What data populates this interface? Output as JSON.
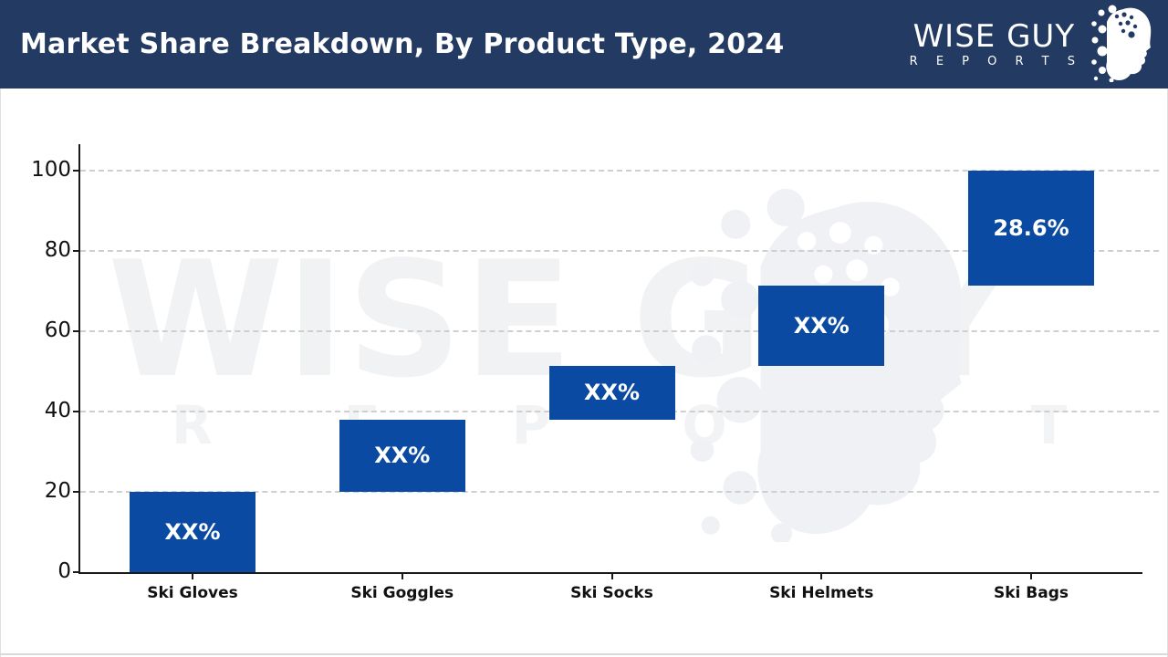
{
  "header": {
    "title": "Market Share Breakdown, By Product Type, 2024",
    "logo": {
      "line1": "WISE GUY",
      "line2": "R E P O R T S"
    }
  },
  "watermark": {
    "line1": "WISE GUY",
    "line2": "R E P O R T S"
  },
  "colors": {
    "header_bg": "#233a63",
    "bar": "#0b4aa2",
    "bar_label": "#ffffff",
    "grid": "#cfcfcf",
    "axis": "#1a1a1a",
    "watermark": "#f1f2f4",
    "bottom_border": "#d9d9d9"
  },
  "chart_data": {
    "type": "bar",
    "subtype": "floating-waterfall",
    "title": "Market Share Breakdown, By Product Type, 2024",
    "categories": [
      "Ski Gloves",
      "Ski Goggles",
      "Ski Socks",
      "Ski Helmets",
      "Ski Bags"
    ],
    "segments": [
      {
        "category": "Ski Gloves",
        "start": 0,
        "end": 20,
        "value": 20,
        "label": "XX%"
      },
      {
        "category": "Ski Goggles",
        "start": 20,
        "end": 38,
        "value": 18,
        "label": "XX%"
      },
      {
        "category": "Ski Socks",
        "start": 38,
        "end": 51.4,
        "value": 13.4,
        "label": "XX%"
      },
      {
        "category": "Ski Helmets",
        "start": 51.4,
        "end": 71.4,
        "value": 20,
        "label": "XX%"
      },
      {
        "category": "Ski Bags",
        "start": 71.4,
        "end": 100,
        "value": 28.6,
        "label": "28.6%"
      }
    ],
    "xlabel": "",
    "ylabel": "",
    "ylim": [
      0,
      100
    ],
    "yticks": [
      0,
      20,
      40,
      60,
      80,
      100
    ],
    "grid": "horizontal-dashed",
    "legend": "none"
  }
}
